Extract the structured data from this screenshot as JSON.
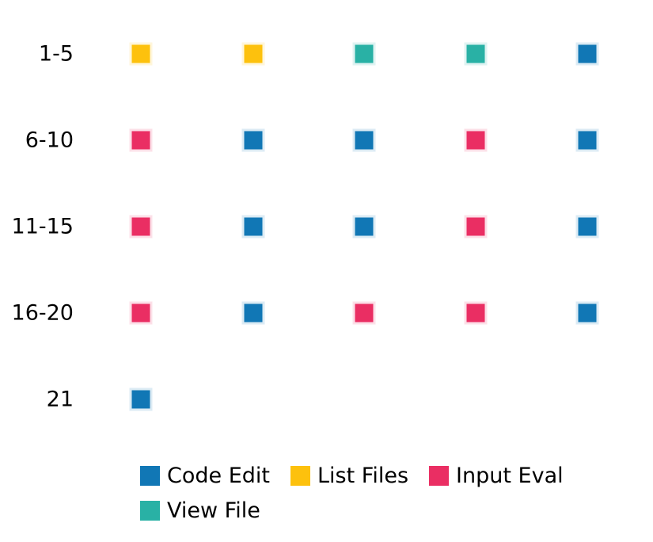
{
  "background_color": "#ffffff",
  "chart_data": {
    "type": "heatmap",
    "title": "",
    "xlabel": "",
    "ylabel": "",
    "grid": false,
    "legend_position": "bottom",
    "legend_columns": 3,
    "row_labels": [
      "1-5",
      "6-10",
      "11-15",
      "16-20",
      "21"
    ],
    "rows": [
      {
        "label": "1-5",
        "actions": [
          "List Files",
          "List Files",
          "View File",
          "View File",
          "Code Edit"
        ]
      },
      {
        "label": "6-10",
        "actions": [
          "Input Eval",
          "Code Edit",
          "Code Edit",
          "Input Eval",
          "Code Edit"
        ]
      },
      {
        "label": "11-15",
        "actions": [
          "Input Eval",
          "Code Edit",
          "Code Edit",
          "Input Eval",
          "Code Edit"
        ]
      },
      {
        "label": "16-20",
        "actions": [
          "Input Eval",
          "Code Edit",
          "Input Eval",
          "Input Eval",
          "Code Edit"
        ]
      },
      {
        "label": "21",
        "actions": [
          "Code Edit",
          null,
          null,
          null,
          null
        ]
      }
    ],
    "palette": {
      "Code Edit": "#1177B5",
      "List Files": "#FDC10D",
      "Input Eval": "#EA2E63",
      "View File": "#29B1A5"
    },
    "legend": [
      {
        "label": "Code Edit",
        "color": "#1177B5"
      },
      {
        "label": "List Files",
        "color": "#FDC10D"
      },
      {
        "label": "Input Eval",
        "color": "#EA2E63"
      },
      {
        "label": "View File",
        "color": "#29B1A5"
      }
    ]
  }
}
